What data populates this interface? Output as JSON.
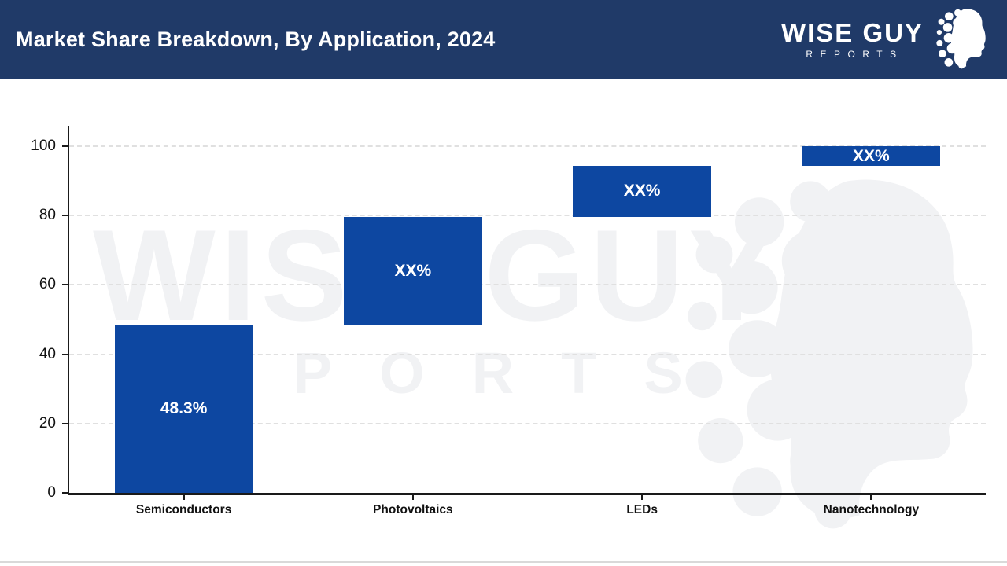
{
  "header": {
    "title": "Market Share Breakdown, By Application, 2024",
    "logo": {
      "line1": "WISE GUY",
      "line2": "REPORTS"
    }
  },
  "watermark": {
    "line1": "WISE GUY",
    "line2": "REPORTS"
  },
  "chart_data": {
    "type": "bar",
    "variant": "waterfall",
    "title": "Market Share Breakdown, By Application, 2024",
    "categories": [
      "Semiconductors",
      "Photovoltaics",
      "LEDs",
      "Nanotechnology"
    ],
    "segments": [
      {
        "category": "Semiconductors",
        "start": 0,
        "end": 48.3,
        "label": "48.3%"
      },
      {
        "category": "Photovoltaics",
        "start": 48.3,
        "end": 79.7,
        "label": "XX%"
      },
      {
        "category": "LEDs",
        "start": 79.7,
        "end": 94.3,
        "label": "XX%"
      },
      {
        "category": "Nanotechnology",
        "start": 94.3,
        "end": 100,
        "label": "XX%"
      }
    ],
    "yticks": [
      0,
      20,
      40,
      60,
      80,
      100
    ],
    "ylim": [
      0,
      106
    ],
    "xlabel": "",
    "ylabel": "",
    "grid": "dashed-horizontal",
    "legend": "none",
    "colors": {
      "bar": "#0d47a1",
      "bar_label": "#ffffff",
      "axis": "#1a1a1a",
      "grid": "#e0e0e0",
      "tick_label": "#111111"
    }
  },
  "theme": {
    "header_bg": "#203a68",
    "header_text": "#ffffff",
    "page_bg": "#ffffff",
    "watermark_color": "#f1f2f4"
  }
}
